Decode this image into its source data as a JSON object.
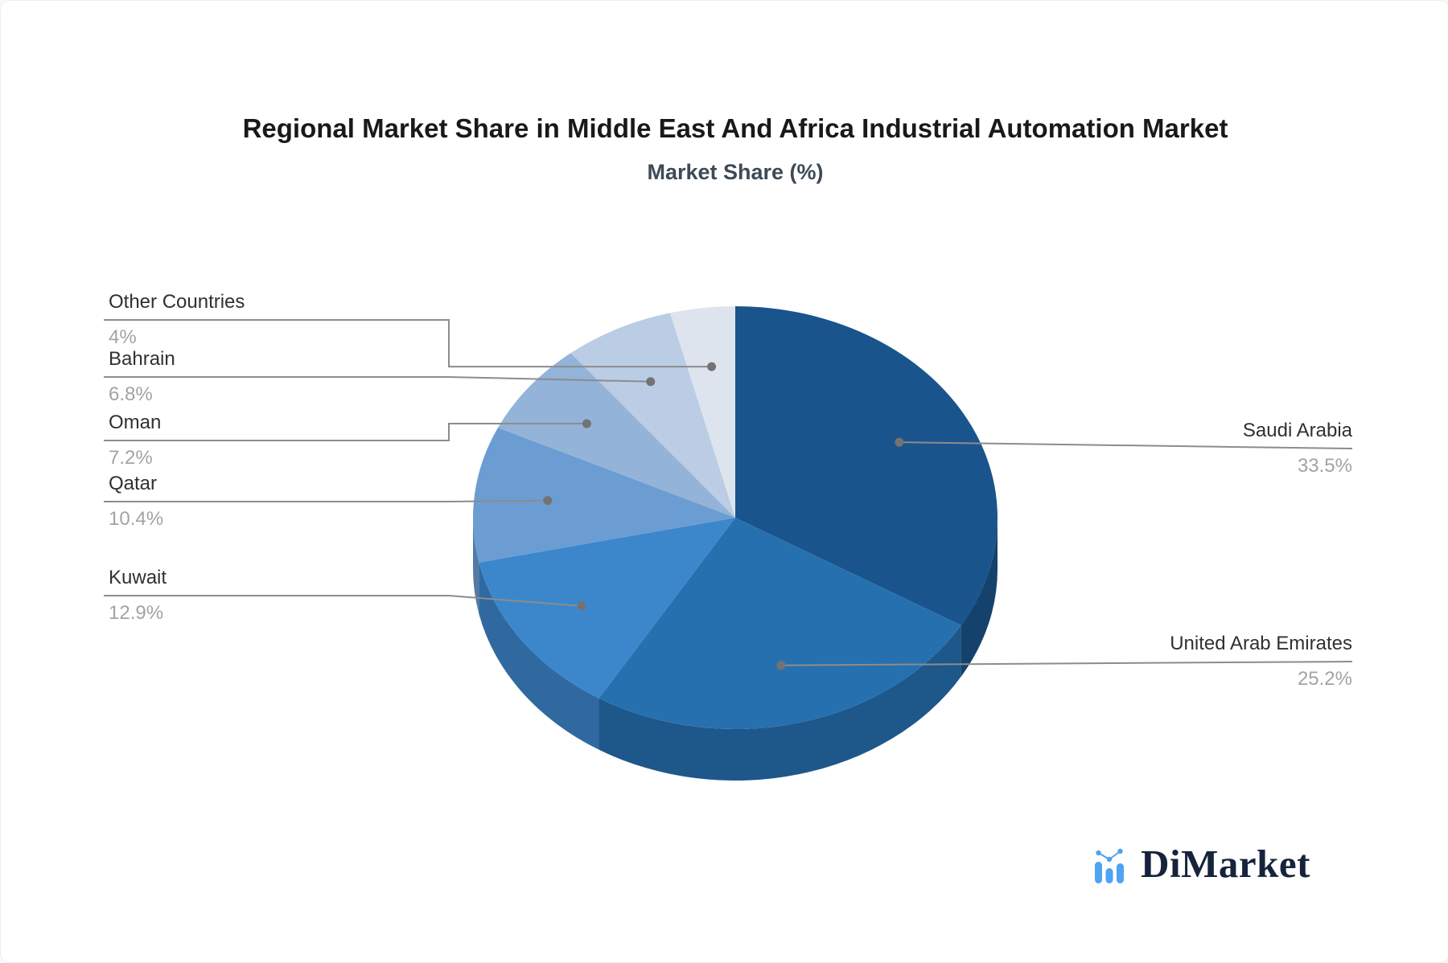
{
  "chart_data": {
    "type": "pie",
    "style": "3d",
    "title": "Regional Market Share in Middle East And Africa Industrial Automation Market",
    "subtitle": "Market Share (%)",
    "unit": "%",
    "start_angle_deg": 0,
    "direction": "clockwise",
    "legend_position": "callout-labels",
    "connector_color": "#8c8c8c",
    "dot_color": "#737373",
    "slices": [
      {
        "label": "Saudi Arabia",
        "value": 33.5,
        "display": "33.5%",
        "color": "#19558C",
        "label_side": "right"
      },
      {
        "label": "United Arab Emirates",
        "value": 25.2,
        "display": "25.2%",
        "color": "#2670AF",
        "label_side": "right"
      },
      {
        "label": "Kuwait",
        "value": 12.9,
        "display": "12.9%",
        "color": "#3C87CC",
        "label_side": "left"
      },
      {
        "label": "Qatar",
        "value": 10.4,
        "display": "10.4%",
        "color": "#6B9DD2",
        "label_side": "left"
      },
      {
        "label": "Oman",
        "value": 7.2,
        "display": "7.2%",
        "color": "#93B3D9",
        "label_side": "left"
      },
      {
        "label": "Bahrain",
        "value": 6.8,
        "display": "6.8%",
        "color": "#BACDE4",
        "label_side": "left"
      },
      {
        "label": "Other Countries",
        "value": 4,
        "display": "4%",
        "color": "#DDE4EE",
        "label_side": "left"
      }
    ]
  },
  "logo": {
    "text": "DiMarket",
    "icon": "bar-chart-trend-icon",
    "icon_color": "#4FA3F3",
    "text_color": "#16233C"
  }
}
